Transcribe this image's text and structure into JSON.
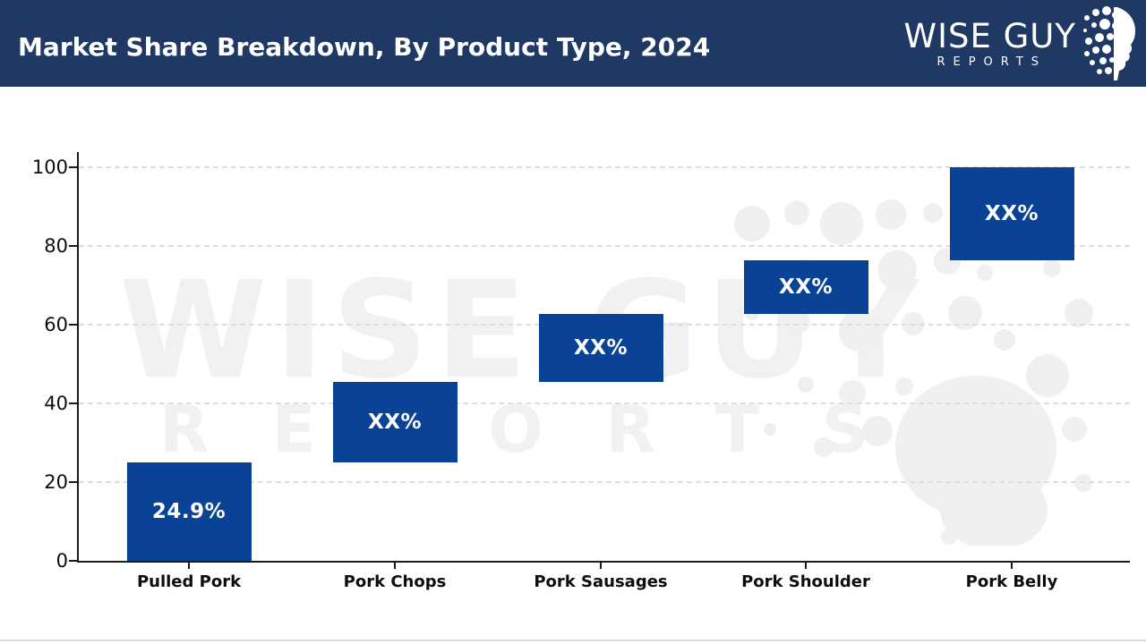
{
  "header": {
    "title": "Market Share Breakdown, By Product Type, 2024",
    "logo": {
      "line1": "WISE GUY",
      "line2": "REPORTS"
    }
  },
  "watermark": {
    "line1": "WISE GUY",
    "line2": "REPORTS"
  },
  "chart_data": {
    "type": "bar",
    "subtype": "waterfall",
    "title": "Market Share Breakdown, By Product Type, 2024",
    "categories": [
      "Pulled Pork",
      "Pork Chops",
      "Pork Sausages",
      "Pork Shoulder",
      "Pork Belly"
    ],
    "bars": [
      {
        "category": "Pulled Pork",
        "start": 0,
        "end": 24.9,
        "label": "24.9%"
      },
      {
        "category": "Pork Chops",
        "start": 24.9,
        "end": 45.4,
        "label": "XX%"
      },
      {
        "category": "Pork Sausages",
        "start": 45.4,
        "end": 62.7,
        "label": "XX%"
      },
      {
        "category": "Pork Shoulder",
        "start": 62.7,
        "end": 76.4,
        "label": "XX%"
      },
      {
        "category": "Pork Belly",
        "start": 76.4,
        "end": 100,
        "label": "XX%"
      }
    ],
    "xlabel": "",
    "ylabel": "",
    "ylim": [
      0,
      100
    ],
    "yticks": [
      0,
      20,
      40,
      60,
      80,
      100
    ],
    "grid": "horizontal-dashed",
    "legend": "none",
    "colors": {
      "bar": "#0a4296",
      "bar_label": "#ffffff",
      "axis": "#1a1a1a",
      "gridline": "#dedede"
    }
  },
  "colors": {
    "header_bg": "#1f3864",
    "page_bg": "#ffffff",
    "watermark": "#f1f1f3",
    "footer_line": "#d8d8d8"
  }
}
